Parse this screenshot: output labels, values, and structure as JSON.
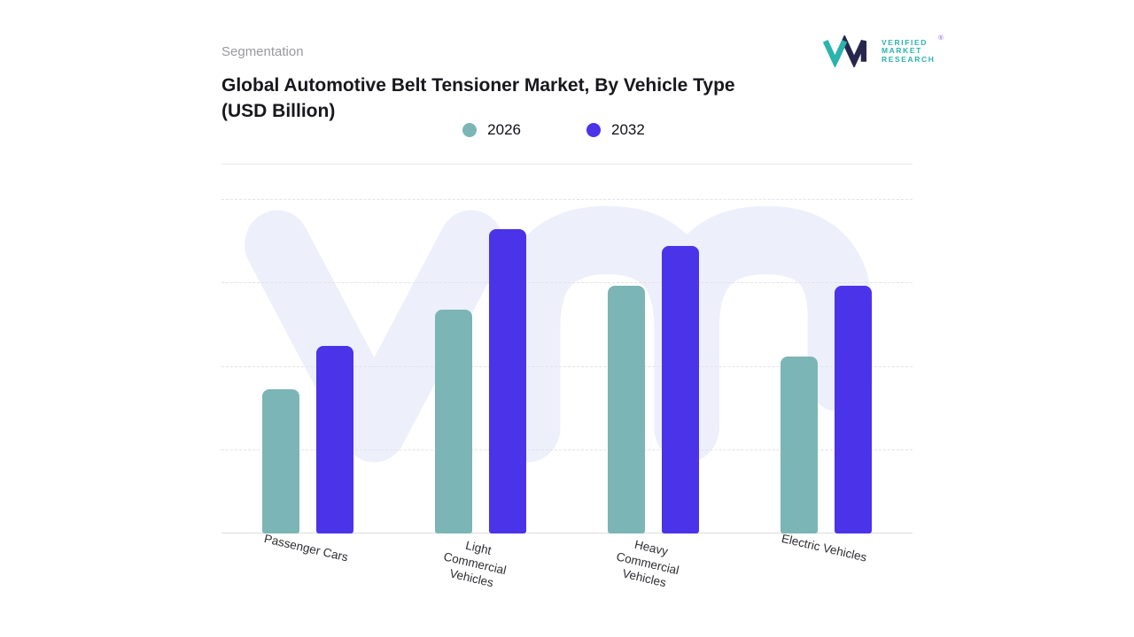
{
  "page": {
    "eyebrow": "Segmentation",
    "title_line1": "Global Automotive Belt Tensioner Market, By Vehicle Type",
    "title_line2": "(USD Billion)"
  },
  "logo": {
    "lines": [
      "VERIFIED",
      "MARKET",
      "RESEARCH"
    ],
    "registered": "®",
    "teal": "#2bb3ad",
    "navy": "#26264e",
    "accent_purple": "#7a52e3"
  },
  "chart_data": {
    "type": "bar",
    "title": "Global Automotive Belt Tensioner Market, By Vehicle Type (USD Billion)",
    "categories": [
      "Passenger Cars",
      "Light\nCommercial\nVehicles",
      "Heavy\nCommercial\nVehicles",
      "Electric Vehicles"
    ],
    "series": [
      {
        "name": "2026",
        "color": "#7cb5b5",
        "values": [
          43,
          67,
          74,
          53
        ]
      },
      {
        "name": "2032",
        "color": "#4a33e9",
        "values": [
          56,
          91,
          86,
          74
        ]
      }
    ],
    "xlabel": "",
    "ylabel": "",
    "ylim": [
      0,
      100
    ],
    "y_axis_labels": "none shown (values estimated relative to plot height)",
    "gridlines": "horizontal dashed at 0%, 25%, 50%, 75%; solid baseline",
    "legend_position": "top-center",
    "watermark": "vm brand glyph, light lavender #edf0fb"
  }
}
